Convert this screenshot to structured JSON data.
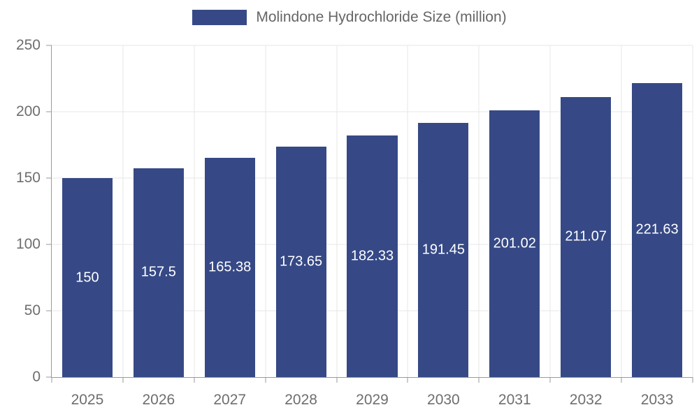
{
  "legend": {
    "label": "Molindone Hydrochloride Size (million)"
  },
  "chart_data": {
    "type": "bar",
    "title": "Molindone Hydrochloride Size (million)",
    "xlabel": "",
    "ylabel": "",
    "categories": [
      "2025",
      "2026",
      "2027",
      "2028",
      "2029",
      "2030",
      "2031",
      "2032",
      "2033"
    ],
    "values": [
      150,
      157.5,
      165.38,
      173.65,
      182.33,
      191.45,
      201.02,
      211.07,
      221.63
    ],
    "value_labels": [
      "150",
      "157.5",
      "165.38",
      "173.65",
      "182.33",
      "191.45",
      "201.02",
      "211.07",
      "221.63"
    ],
    "ylim": [
      0,
      250
    ],
    "y_ticks": [
      0,
      50,
      100,
      150,
      200,
      250
    ],
    "grid": true,
    "legend_position": "top-center",
    "bar_color": "#364986",
    "bar_label_color": "#ffffff",
    "grid_color": "#e7e7e7",
    "axis_color": "#9a9a9a",
    "tick_text_color": "#6e6e6e",
    "bar_width_fraction": 0.707
  }
}
